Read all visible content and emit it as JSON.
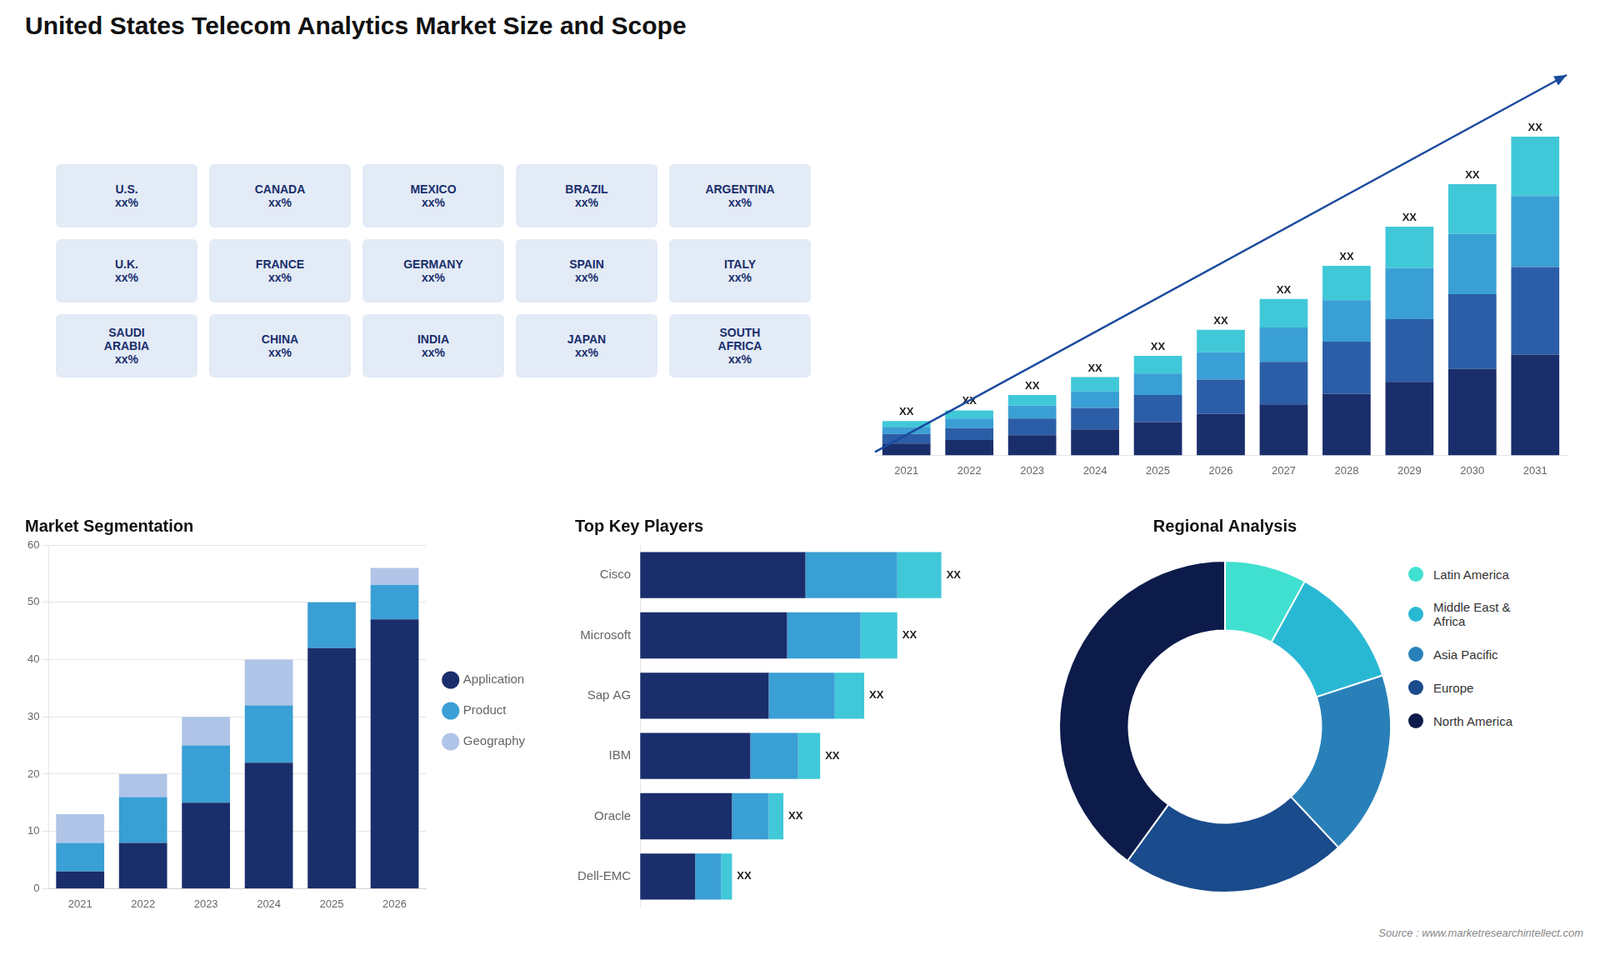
{
  "chart_data": [
    {
      "type": "map",
      "annotations": [
        "U.S.\nxx%",
        "CANADA\nxx%",
        "MEXICO\nxx%",
        "BRAZIL\nxx%",
        "ARGENTINA\nxx%",
        "U.K.\nxx%",
        "FRANCE\nxx%",
        "GERMANY\nxx%",
        "SPAIN\nxx%",
        "ITALY\nxx%",
        "SAUDI\nARABIA\nxx%",
        "CHINA\nxx%",
        "INDIA\nxx%",
        "JAPAN\nxx%",
        "SOUTH\nAFRICA\nxx%"
      ]
    },
    {
      "type": "bar",
      "title": "United States Telecom Analytics Market Size and Scope",
      "categories": [
        "2021",
        "2022",
        "2023",
        "2024",
        "2025",
        "2026",
        "2027",
        "2028",
        "2029",
        "2030",
        "2031"
      ],
      "stacked": true,
      "series": [
        {
          "color": "#1a2e6c",
          "values": [
            1.0,
            1.3,
            1.7,
            2.2,
            2.8,
            3.5,
            4.3,
            5.2,
            6.2,
            7.3,
            8.5
          ]
        },
        {
          "color": "#2b5ea7",
          "values": [
            0.8,
            1.0,
            1.4,
            1.8,
            2.3,
            2.9,
            3.6,
            4.4,
            5.3,
            6.3,
            7.4
          ]
        },
        {
          "color": "#3a9fd4",
          "values": [
            0.6,
            0.8,
            1.1,
            1.4,
            1.8,
            2.3,
            2.9,
            3.5,
            4.3,
            5.1,
            6.0
          ]
        },
        {
          "color": "#40c8d8",
          "values": [
            0.5,
            0.7,
            0.9,
            1.2,
            1.5,
            1.9,
            2.4,
            2.9,
            3.5,
            4.2,
            5.0
          ]
        }
      ],
      "ylim": [
        0,
        32.818
      ],
      "grid": false,
      "tick_labels": "x",
      "annotations": [
        "XX",
        "XX",
        "XX",
        "XX",
        "XX",
        "XX",
        "XX",
        "XX",
        "XX",
        "XX",
        "XX"
      ]
    },
    {
      "type": "bar",
      "title": "Market Segmentation",
      "categories": [
        "2021",
        "2022",
        "2023",
        "2024",
        "2025",
        "2026"
      ],
      "stacked": true,
      "series": [
        {
          "name": "Application",
          "color": "#1a2e6c",
          "values": [
            3,
            8,
            15,
            22,
            42,
            47
          ]
        },
        {
          "name": "Product",
          "color": "#3a9fd4",
          "values": [
            5,
            8,
            10,
            10,
            8,
            6
          ]
        },
        {
          "name": "Geography",
          "color": "#b0c4e8",
          "values": [
            5,
            4,
            5,
            8,
            0,
            3
          ]
        }
      ],
      "ylim": [
        0,
        60
      ],
      "yticks": [
        0,
        10,
        20,
        30,
        40,
        50,
        60
      ],
      "grid": true,
      "legend": "right"
    },
    {
      "type": "bar",
      "title": "Top Key Players",
      "orientation": "horizontal",
      "stacked": true,
      "categories": [
        "Cisco",
        "Microsoft",
        "Sap AG",
        "IBM",
        "Oracle",
        "Dell-EMC"
      ],
      "series": [
        {
          "color": "#1a2e6c",
          "values": [
            4.5,
            4.0,
            3.5,
            3.0,
            2.5,
            1.5
          ]
        },
        {
          "color": "#3a9fd4",
          "values": [
            2.5,
            2.0,
            1.8,
            1.3,
            1.0,
            0.7
          ]
        },
        {
          "color": "#40c8d8",
          "values": [
            1.2,
            1.0,
            0.8,
            0.6,
            0.4,
            0.3
          ]
        }
      ],
      "xlim": [
        0,
        10.25
      ],
      "grid": false,
      "tick_labels": "y",
      "annotations": [
        "XX",
        "XX",
        "XX",
        "XX",
        "XX",
        "XX"
      ]
    },
    {
      "type": "doughnut",
      "title": "Regional Analysis",
      "categories": [
        "Latin America",
        "Middle East &\nAfrica",
        "Asia Pacific",
        "Europe",
        "North America"
      ],
      "values": [
        8,
        12,
        18,
        22,
        40
      ],
      "colors": [
        "#40e0d0",
        "#29b8d4",
        "#2980b9",
        "#1a4b8c",
        "#0d1b4b"
      ],
      "legend": "right",
      "annotations": [
        "Source : www.marketresearchintellect.com"
      ]
    }
  ]
}
